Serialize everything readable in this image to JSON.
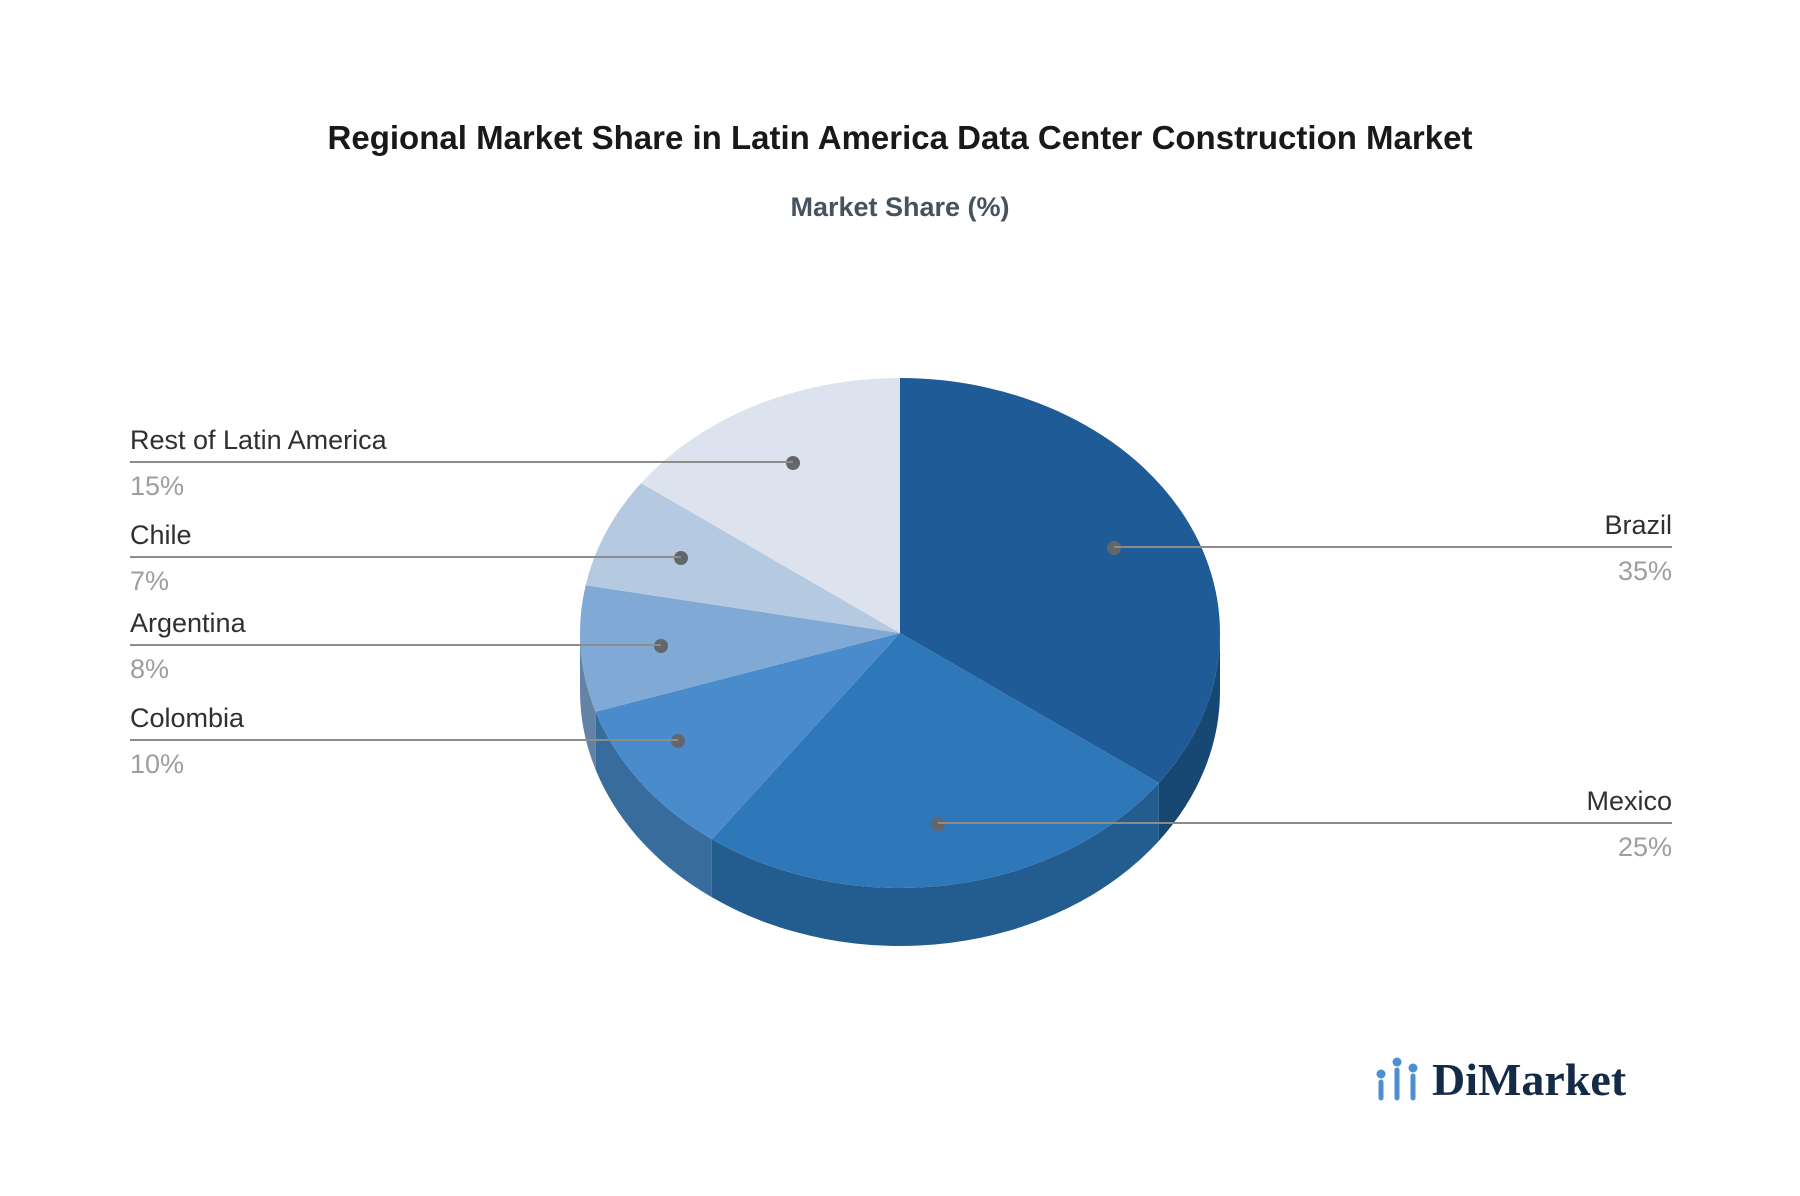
{
  "title": "Regional Market Share in Latin America Data Center Construction Market",
  "subtitle": "Market Share (%)",
  "logo": {
    "text": "DiMarket",
    "icon": "bar-chart-logo-icon"
  },
  "chart_data": {
    "type": "pie",
    "title": "Regional Market Share in Latin America Data Center Construction Market",
    "subtitle": "Market Share (%)",
    "effect": "3d-depth",
    "start_angle_deg": -90,
    "direction": "clockwise",
    "unit": "%",
    "slices": [
      {
        "name": "Brazil",
        "value": 35,
        "pct_label": "35%",
        "color": "#1E5B97",
        "side_color": "#174873",
        "label_side": "right"
      },
      {
        "name": "Mexico",
        "value": 25,
        "pct_label": "25%",
        "color": "#2E77B8",
        "side_color": "#235C8E",
        "label_side": "right"
      },
      {
        "name": "Colombia",
        "value": 10,
        "pct_label": "10%",
        "color": "#4A8CCB",
        "side_color": "#386C9D",
        "label_side": "left"
      },
      {
        "name": "Argentina",
        "value": 8,
        "pct_label": "8%",
        "color": "#80A9D5",
        "side_color": "#6383A6",
        "label_side": "left"
      },
      {
        "name": "Chile",
        "value": 7,
        "pct_label": "7%",
        "color": "#B5CAE1",
        "side_color": "#8C9DB0",
        "label_side": "left"
      },
      {
        "name": "Rest of Latin America",
        "value": 15,
        "pct_label": "15%",
        "color": "#DDE3EE",
        "side_color": "#ACB3BF",
        "label_side": "left"
      }
    ],
    "connector_color": "#8c8c8c",
    "dot_color": "#63666a",
    "legend_position": "none",
    "grid": false
  }
}
